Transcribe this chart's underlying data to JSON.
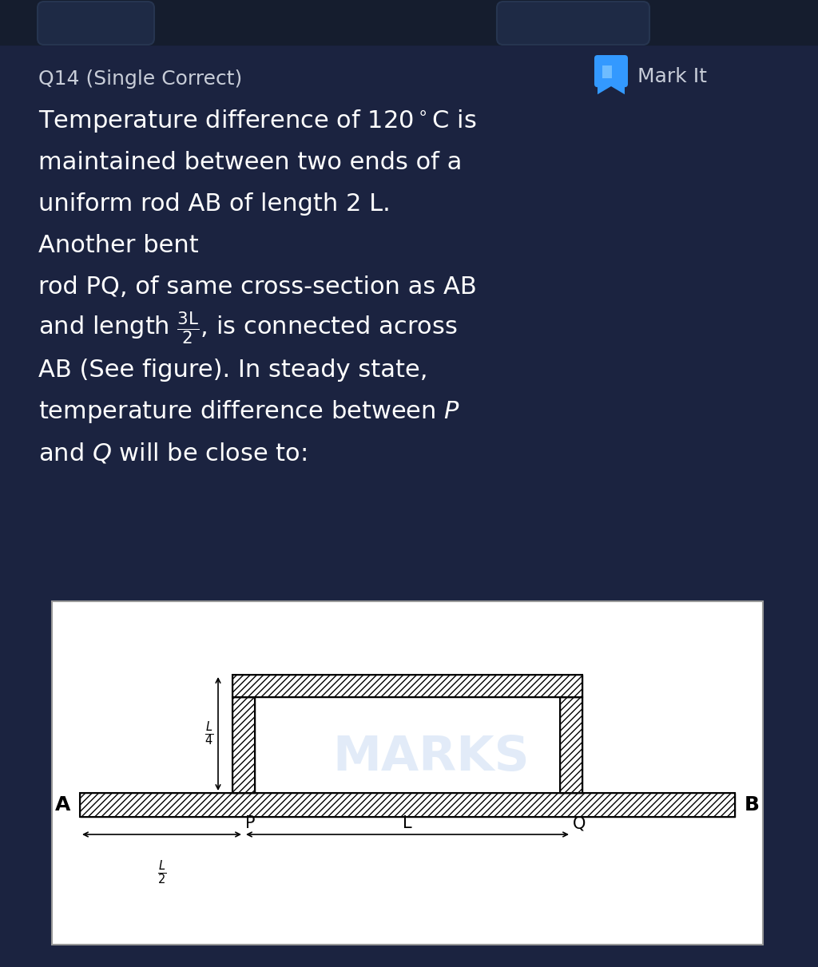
{
  "bg_color": "#1b2340",
  "text_color": "#ffffff",
  "fig_width": 10.24,
  "fig_height": 12.11,
  "header_label": "Q14 (Single Correct)",
  "mark_it_label": "Mark It",
  "diagram_bg": "#ffffff"
}
